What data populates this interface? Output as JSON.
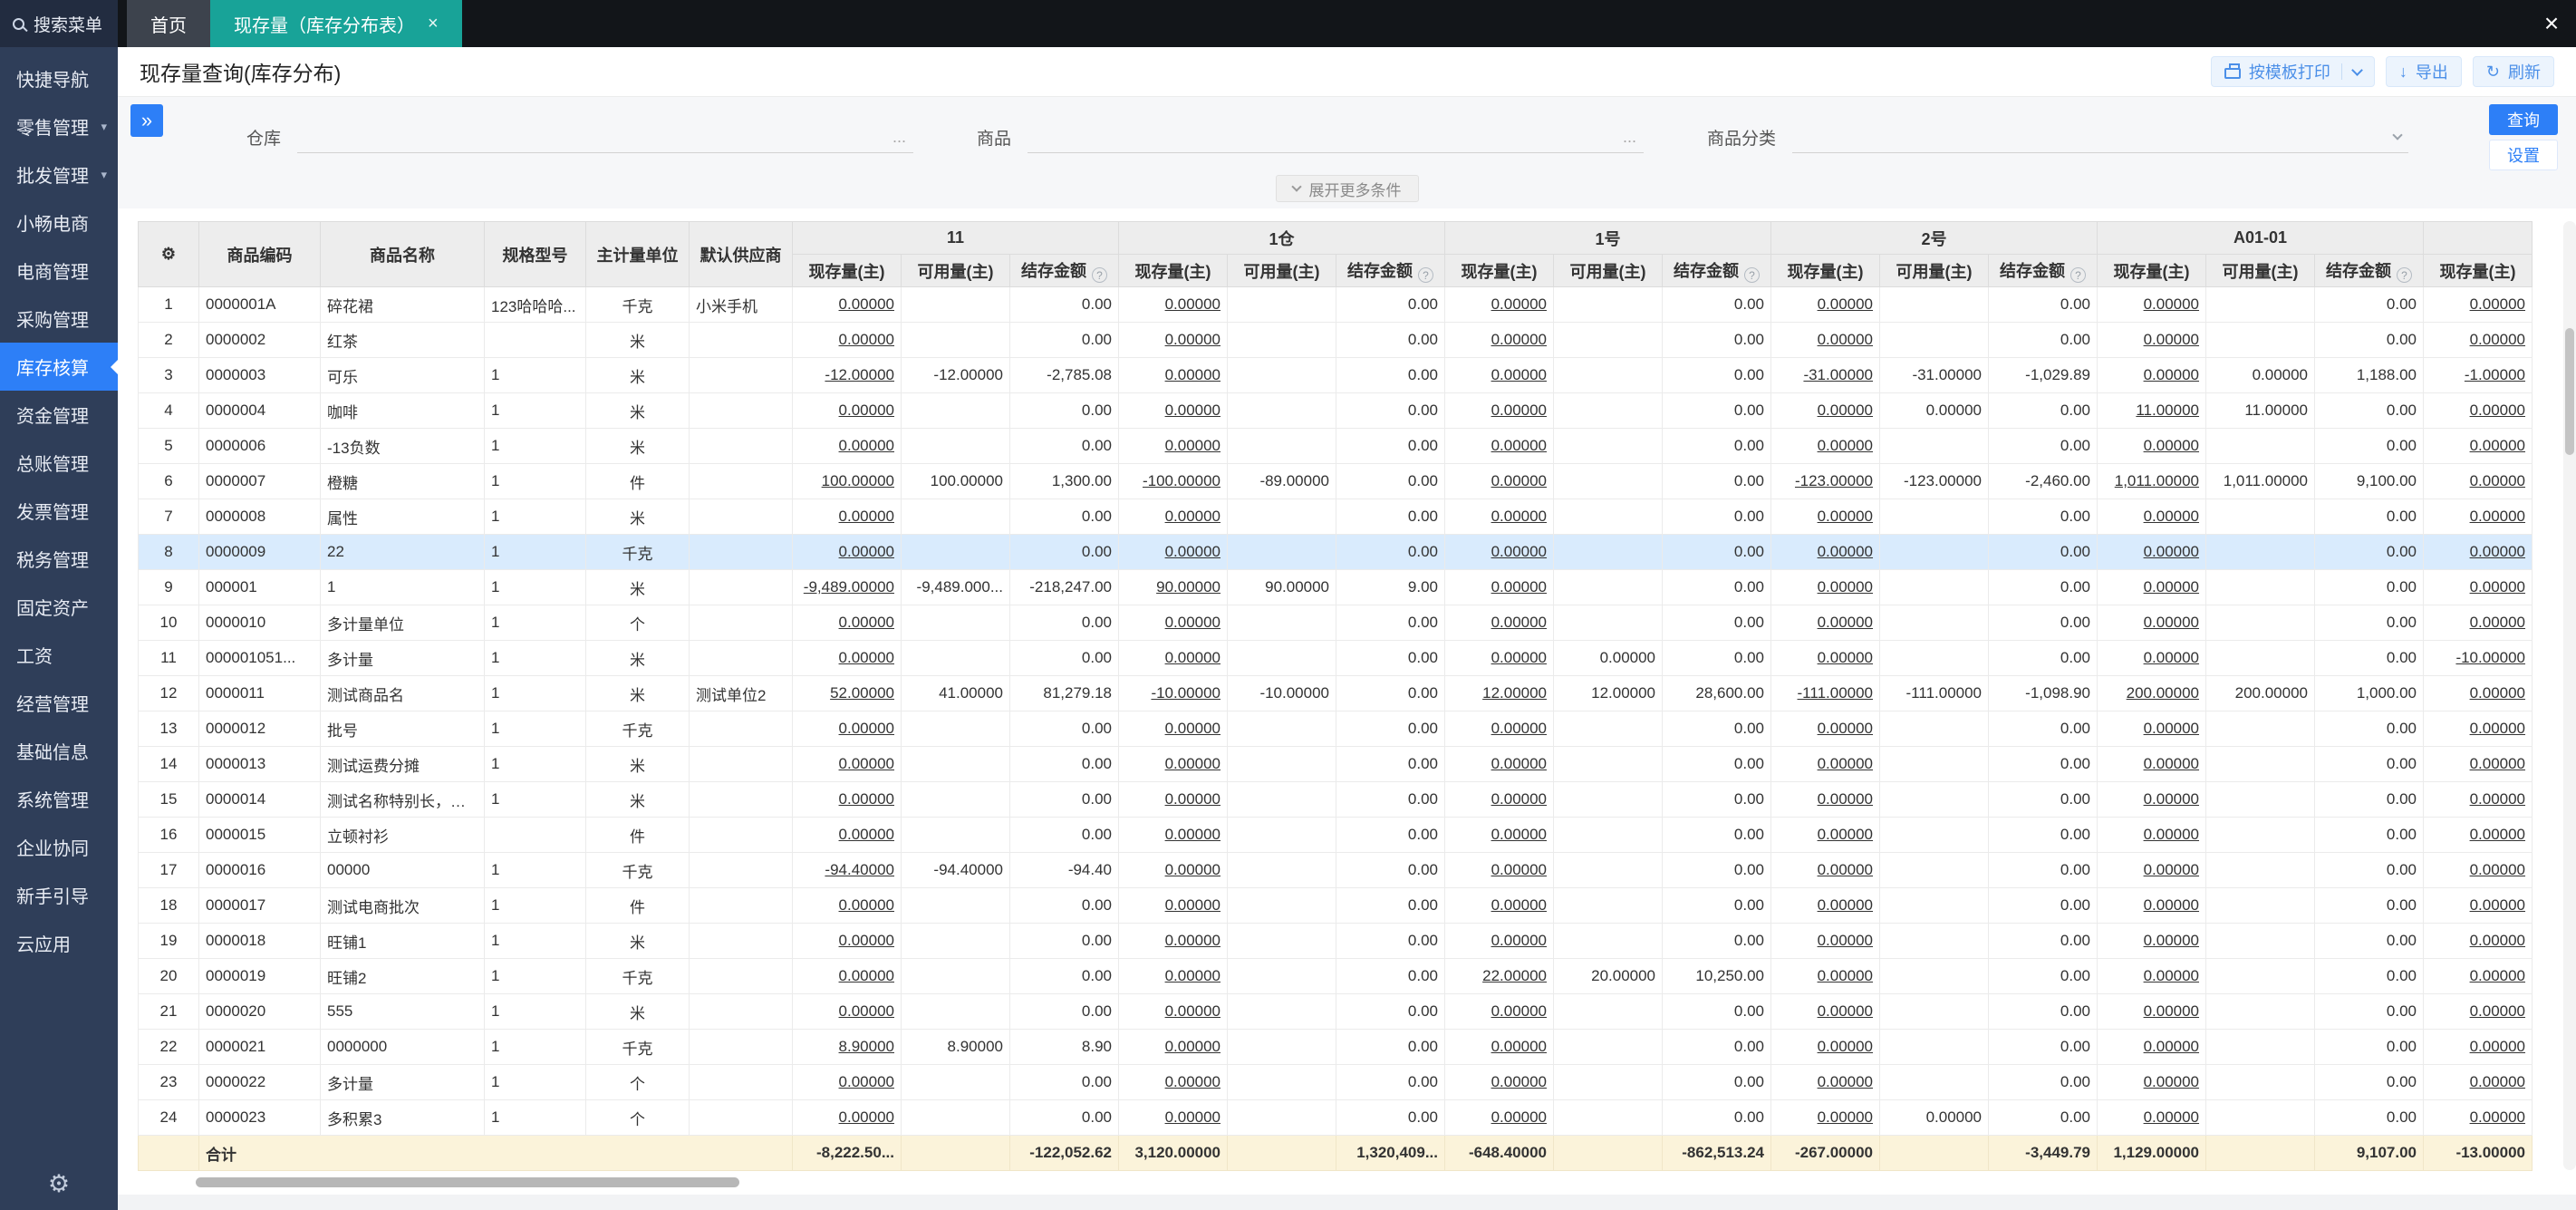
{
  "colors": {
    "accent_blue": "#2d7ff7",
    "tab_active_teal": "#18a398",
    "sidebar_bg": "#2f3e59",
    "link_blue": "#2064c0",
    "negative_red": "#e23b30",
    "selected_row_bg": "#d9ebfd",
    "total_row_bg": "#fbf3da"
  },
  "icons": {
    "close": "×",
    "gear": "⚙",
    "refresh": "↻",
    "download": "↓",
    "double_arrow": "»"
  },
  "topbar": {
    "tabs": [
      {
        "label": "首页",
        "active": false,
        "closable": false
      },
      {
        "label": "现存量（库存分布表）",
        "active": true,
        "closable": true
      }
    ]
  },
  "sidebar": {
    "search_label": "搜索菜单",
    "items": [
      {
        "label": "快捷导航"
      },
      {
        "label": "零售管理",
        "arrow": true
      },
      {
        "label": "批发管理",
        "arrow": true
      },
      {
        "label": "小畅电商"
      },
      {
        "label": "电商管理"
      },
      {
        "label": "采购管理"
      },
      {
        "label": "库存核算",
        "active": true
      },
      {
        "label": "资金管理"
      },
      {
        "label": "总账管理"
      },
      {
        "label": "发票管理"
      },
      {
        "label": "税务管理"
      },
      {
        "label": "固定资产"
      },
      {
        "label": "工资"
      },
      {
        "label": "经营管理"
      },
      {
        "label": "基础信息"
      },
      {
        "label": "系统管理"
      },
      {
        "label": "企业协同"
      },
      {
        "label": "新手引导"
      },
      {
        "label": "云应用"
      }
    ]
  },
  "page": {
    "title": "现存量查询(库存分布)",
    "actions": {
      "print": "按模板打印",
      "export": "导出",
      "refresh": "刷新"
    }
  },
  "filters": {
    "fields": [
      {
        "label": "仓库",
        "value": "",
        "suffix": "..."
      },
      {
        "label": "商品",
        "value": "",
        "suffix": "..."
      },
      {
        "label": "商品分类",
        "value": "",
        "suffix": "chevron"
      }
    ],
    "query_button": "查询",
    "settings_button": "设置",
    "expand_more": "展开更多条件"
  },
  "table": {
    "fixed_headers": [
      "商品编码",
      "商品名称",
      "规格型号",
      "主计量单位",
      "默认供应商"
    ],
    "groups": [
      "11",
      "1仓",
      "1号",
      "2号",
      "A01-01"
    ],
    "sub_headers": [
      "现存量(主)",
      "可用量(主)",
      "结存金额"
    ],
    "extra_sub_header": "现存量(主)",
    "total_label": "合计",
    "rows": [
      {
        "n": 1,
        "code": "0000001A",
        "name": "碎花裙",
        "spec": "123哈哈哈...",
        "unit": "千克",
        "supplier": "小米手机",
        "cells": [
          "0.00000",
          "",
          "0.00",
          "0.00000",
          "",
          "0.00",
          "0.00000",
          "",
          "0.00",
          "0.00000",
          "",
          "0.00",
          "0.00000",
          "",
          "0.00",
          "0.00000"
        ]
      },
      {
        "n": 2,
        "code": "0000002",
        "name": "红茶",
        "spec": "",
        "unit": "米",
        "supplier": "",
        "cells": [
          "0.00000",
          "",
          "0.00",
          "0.00000",
          "",
          "0.00",
          "0.00000",
          "",
          "0.00",
          "0.00000",
          "",
          "0.00",
          "0.00000",
          "",
          "0.00",
          "0.00000"
        ]
      },
      {
        "n": 3,
        "code": "0000003",
        "name": "可乐",
        "spec": "1",
        "unit": "米",
        "supplier": "",
        "cells": [
          "-12.00000",
          "-12.00000",
          "-2,785.08",
          "0.00000",
          "",
          "0.00",
          "0.00000",
          "",
          "0.00",
          "-31.00000",
          "-31.00000",
          "-1,029.89",
          "0.00000",
          "0.00000",
          "1,188.00",
          "-1.00000"
        ]
      },
      {
        "n": 4,
        "code": "0000004",
        "name": "咖啡",
        "spec": "1",
        "unit": "米",
        "supplier": "",
        "cells": [
          "0.00000",
          "",
          "0.00",
          "0.00000",
          "",
          "0.00",
          "0.00000",
          "",
          "0.00",
          "0.00000",
          "0.00000",
          "0.00",
          "11.00000",
          "11.00000",
          "0.00",
          "0.00000"
        ]
      },
      {
        "n": 5,
        "code": "0000006",
        "name": "-13负数",
        "nameRed": true,
        "spec": "1",
        "unit": "米",
        "supplier": "",
        "cells": [
          "0.00000",
          "",
          "0.00",
          "0.00000",
          "",
          "0.00",
          "0.00000",
          "",
          "0.00",
          "0.00000",
          "",
          "0.00",
          "0.00000",
          "",
          "0.00",
          "0.00000"
        ]
      },
      {
        "n": 6,
        "code": "0000007",
        "name": "橙糖",
        "spec": "1",
        "unit": "件",
        "supplier": "",
        "cells": [
          "100.00000",
          "100.00000",
          "1,300.00",
          "-100.00000",
          "-89.00000",
          "0.00",
          "0.00000",
          "",
          "0.00",
          "-123.00000",
          "-123.00000",
          "-2,460.00",
          "1,011.00000",
          "1,011.00000",
          "9,100.00",
          "0.00000"
        ]
      },
      {
        "n": 7,
        "code": "0000008",
        "name": "属性",
        "spec": "1",
        "unit": "米",
        "supplier": "",
        "cells": [
          "0.00000",
          "",
          "0.00",
          "0.00000",
          "",
          "0.00",
          "0.00000",
          "",
          "0.00",
          "0.00000",
          "",
          "0.00",
          "0.00000",
          "",
          "0.00",
          "0.00000"
        ]
      },
      {
        "n": 8,
        "code": "0000009",
        "name": "22",
        "spec": "1",
        "unit": "千克",
        "supplier": "",
        "selected": true,
        "cells": [
          "0.00000",
          "",
          "0.00",
          "0.00000",
          "",
          "0.00",
          "0.00000",
          "",
          "0.00",
          "0.00000",
          "",
          "0.00",
          "0.00000",
          "",
          "0.00",
          "0.00000"
        ]
      },
      {
        "n": 9,
        "code": "000001",
        "name": "1",
        "spec": "1",
        "unit": "米",
        "supplier": "",
        "cells": [
          "-9,489.00000",
          "-9,489.000...",
          "-218,247.00",
          "90.00000",
          "90.00000",
          "9.00",
          "0.00000",
          "",
          "0.00",
          "0.00000",
          "",
          "0.00",
          "0.00000",
          "",
          "0.00",
          "0.00000"
        ]
      },
      {
        "n": 10,
        "code": "0000010",
        "name": "多计量单位",
        "spec": "1",
        "unit": "个",
        "supplier": "",
        "cells": [
          "0.00000",
          "",
          "0.00",
          "0.00000",
          "",
          "0.00",
          "0.00000",
          "",
          "0.00",
          "0.00000",
          "",
          "0.00",
          "0.00000",
          "",
          "0.00",
          "0.00000"
        ]
      },
      {
        "n": 11,
        "code": "000001051...",
        "name": "多计量",
        "spec": "1",
        "unit": "米",
        "supplier": "",
        "cells": [
          "0.00000",
          "",
          "0.00",
          "0.00000",
          "",
          "0.00",
          "0.00000",
          "0.00000",
          "0.00",
          "0.00000",
          "",
          "0.00",
          "0.00000",
          "",
          "0.00",
          "-10.00000"
        ]
      },
      {
        "n": 12,
        "code": "0000011",
        "name": "测试商品名",
        "spec": "1",
        "unit": "米",
        "supplier": "测试单位2",
        "cells": [
          "52.00000",
          "41.00000",
          "81,279.18",
          "-10.00000",
          "-10.00000",
          "0.00",
          "12.00000",
          "12.00000",
          "28,600.00",
          "-111.00000",
          "-111.00000",
          "-1,098.90",
          "200.00000",
          "200.00000",
          "1,000.00",
          "0.00000"
        ]
      },
      {
        "n": 13,
        "code": "0000012",
        "name": "批号",
        "spec": "1",
        "unit": "千克",
        "supplier": "",
        "cells": [
          "0.00000",
          "",
          "0.00",
          "0.00000",
          "",
          "0.00",
          "0.00000",
          "",
          "0.00",
          "0.00000",
          "",
          "0.00",
          "0.00000",
          "",
          "0.00",
          "0.00000"
        ]
      },
      {
        "n": 14,
        "code": "0000013",
        "name": "测试运费分摊",
        "spec": "1",
        "unit": "米",
        "supplier": "",
        "cells": [
          "0.00000",
          "",
          "0.00",
          "0.00000",
          "",
          "0.00",
          "0.00000",
          "",
          "0.00",
          "0.00000",
          "",
          "0.00",
          "0.00000",
          "",
          "0.00",
          "0.00000"
        ]
      },
      {
        "n": 15,
        "code": "0000014",
        "name": "测试名称特别长，然后数...",
        "spec": "1",
        "unit": "米",
        "supplier": "",
        "cells": [
          "0.00000",
          "",
          "0.00",
          "0.00000",
          "",
          "0.00",
          "0.00000",
          "",
          "0.00",
          "0.00000",
          "",
          "0.00",
          "0.00000",
          "",
          "0.00",
          "0.00000"
        ]
      },
      {
        "n": 16,
        "code": "0000015",
        "name": "立顿衬衫",
        "spec": "",
        "unit": "件",
        "supplier": "",
        "cells": [
          "0.00000",
          "",
          "0.00",
          "0.00000",
          "",
          "0.00",
          "0.00000",
          "",
          "0.00",
          "0.00000",
          "",
          "0.00",
          "0.00000",
          "",
          "0.00",
          "0.00000"
        ]
      },
      {
        "n": 17,
        "code": "0000016",
        "name": "00000",
        "spec": "1",
        "unit": "千克",
        "supplier": "",
        "cells": [
          "-94.40000",
          "-94.40000",
          "-94.40",
          "0.00000",
          "",
          "0.00",
          "0.00000",
          "",
          "0.00",
          "0.00000",
          "",
          "0.00",
          "0.00000",
          "",
          "0.00",
          "0.00000"
        ]
      },
      {
        "n": 18,
        "code": "0000017",
        "name": "测试电商批次",
        "spec": "1",
        "unit": "件",
        "supplier": "",
        "cells": [
          "0.00000",
          "",
          "0.00",
          "0.00000",
          "",
          "0.00",
          "0.00000",
          "",
          "0.00",
          "0.00000",
          "",
          "0.00",
          "0.00000",
          "",
          "0.00",
          "0.00000"
        ]
      },
      {
        "n": 19,
        "code": "0000018",
        "name": "旺铺1",
        "spec": "1",
        "unit": "米",
        "supplier": "",
        "cells": [
          "0.00000",
          "",
          "0.00",
          "0.00000",
          "",
          "0.00",
          "0.00000",
          "",
          "0.00",
          "0.00000",
          "",
          "0.00",
          "0.00000",
          "",
          "0.00",
          "0.00000"
        ]
      },
      {
        "n": 20,
        "code": "0000019",
        "name": "旺铺2",
        "spec": "1",
        "unit": "千克",
        "supplier": "",
        "cells": [
          "0.00000",
          "",
          "0.00",
          "0.00000",
          "",
          "0.00",
          "22.00000",
          "20.00000",
          "10,250.00",
          "0.00000",
          "",
          "0.00",
          "0.00000",
          "",
          "0.00",
          "0.00000"
        ]
      },
      {
        "n": 21,
        "code": "0000020",
        "name": "555",
        "spec": "1",
        "unit": "米",
        "supplier": "",
        "cells": [
          "0.00000",
          "",
          "0.00",
          "0.00000",
          "",
          "0.00",
          "0.00000",
          "",
          "0.00",
          "0.00000",
          "",
          "0.00",
          "0.00000",
          "",
          "0.00",
          "0.00000"
        ]
      },
      {
        "n": 22,
        "code": "0000021",
        "name": "0000000",
        "spec": "1",
        "unit": "千克",
        "supplier": "",
        "cells": [
          "8.90000",
          "8.90000",
          "8.90",
          "0.00000",
          "",
          "0.00",
          "0.00000",
          "",
          "0.00",
          "0.00000",
          "",
          "0.00",
          "0.00000",
          "",
          "0.00",
          "0.00000"
        ]
      },
      {
        "n": 23,
        "code": "0000022",
        "name": "多计量",
        "spec": "1",
        "unit": "个",
        "supplier": "",
        "cells": [
          "0.00000",
          "",
          "0.00",
          "0.00000",
          "",
          "0.00",
          "0.00000",
          "",
          "0.00",
          "0.00000",
          "",
          "0.00",
          "0.00000",
          "",
          "0.00",
          "0.00000"
        ]
      },
      {
        "n": 24,
        "code": "0000023",
        "name": "多积累3",
        "spec": "1",
        "unit": "个",
        "supplier": "",
        "cells": [
          "0.00000",
          "",
          "0.00",
          "0.00000",
          "",
          "0.00",
          "0.00000",
          "",
          "0.00",
          "0.00000",
          "0.00000",
          "0.00",
          "0.00000",
          "",
          "0.00",
          "0.00000"
        ]
      }
    ],
    "totals": [
      "-8,222.50...",
      "",
      "-122,052.62",
      "3,120.00000",
      "",
      "1,320,409...",
      "-648.40000",
      "",
      "-862,513.24",
      "-267.00000",
      "",
      "-3,449.79",
      "1,129.00000",
      "",
      "9,107.00",
      "-13.00000"
    ]
  }
}
